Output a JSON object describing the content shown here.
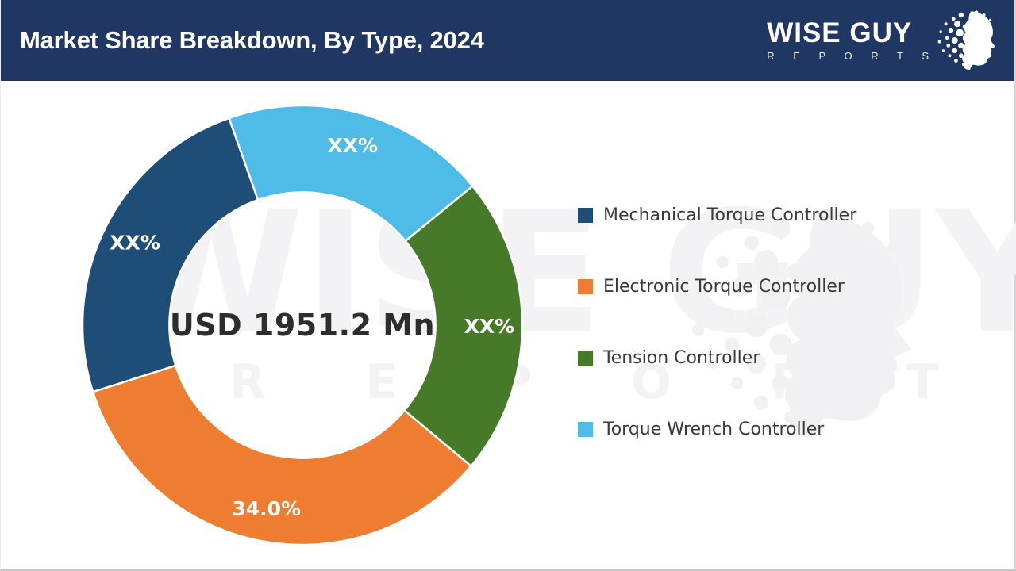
{
  "header": {
    "title": "Market Share Breakdown, By Type, 2024",
    "logo": {
      "line1": "WISE GUY",
      "line2": "R E P O R T S"
    }
  },
  "watermark": {
    "line1": "WISE GUY",
    "line2": "R E P O R T S"
  },
  "chart_data": {
    "type": "pie",
    "donut": true,
    "title": "Market Share Breakdown, By Type, 2024",
    "center_label": "USD 1951.2 Mn",
    "segments": [
      {
        "name": "Mechanical Torque Controller",
        "label": "XX%",
        "pct_est": 24.5,
        "color": "#1E4E78"
      },
      {
        "name": "Electronic Torque Controller",
        "label": "34.0%",
        "pct_est": 34.0,
        "color": "#EE7D31"
      },
      {
        "name": "Tension Controller",
        "label": "XX%",
        "pct_est": 22.0,
        "color": "#477A28"
      },
      {
        "name": "Torque Wrench Controller",
        "label": "XX%",
        "pct_est": 19.5,
        "color": "#4FBCE8"
      }
    ],
    "draw": {
      "order": [
        3,
        2,
        1,
        0
      ],
      "start_angle_deg": -19.5,
      "clockwise": true,
      "inner_ratio": 0.605,
      "label_radius_ratio": 0.85
    },
    "legend_position": "right"
  }
}
